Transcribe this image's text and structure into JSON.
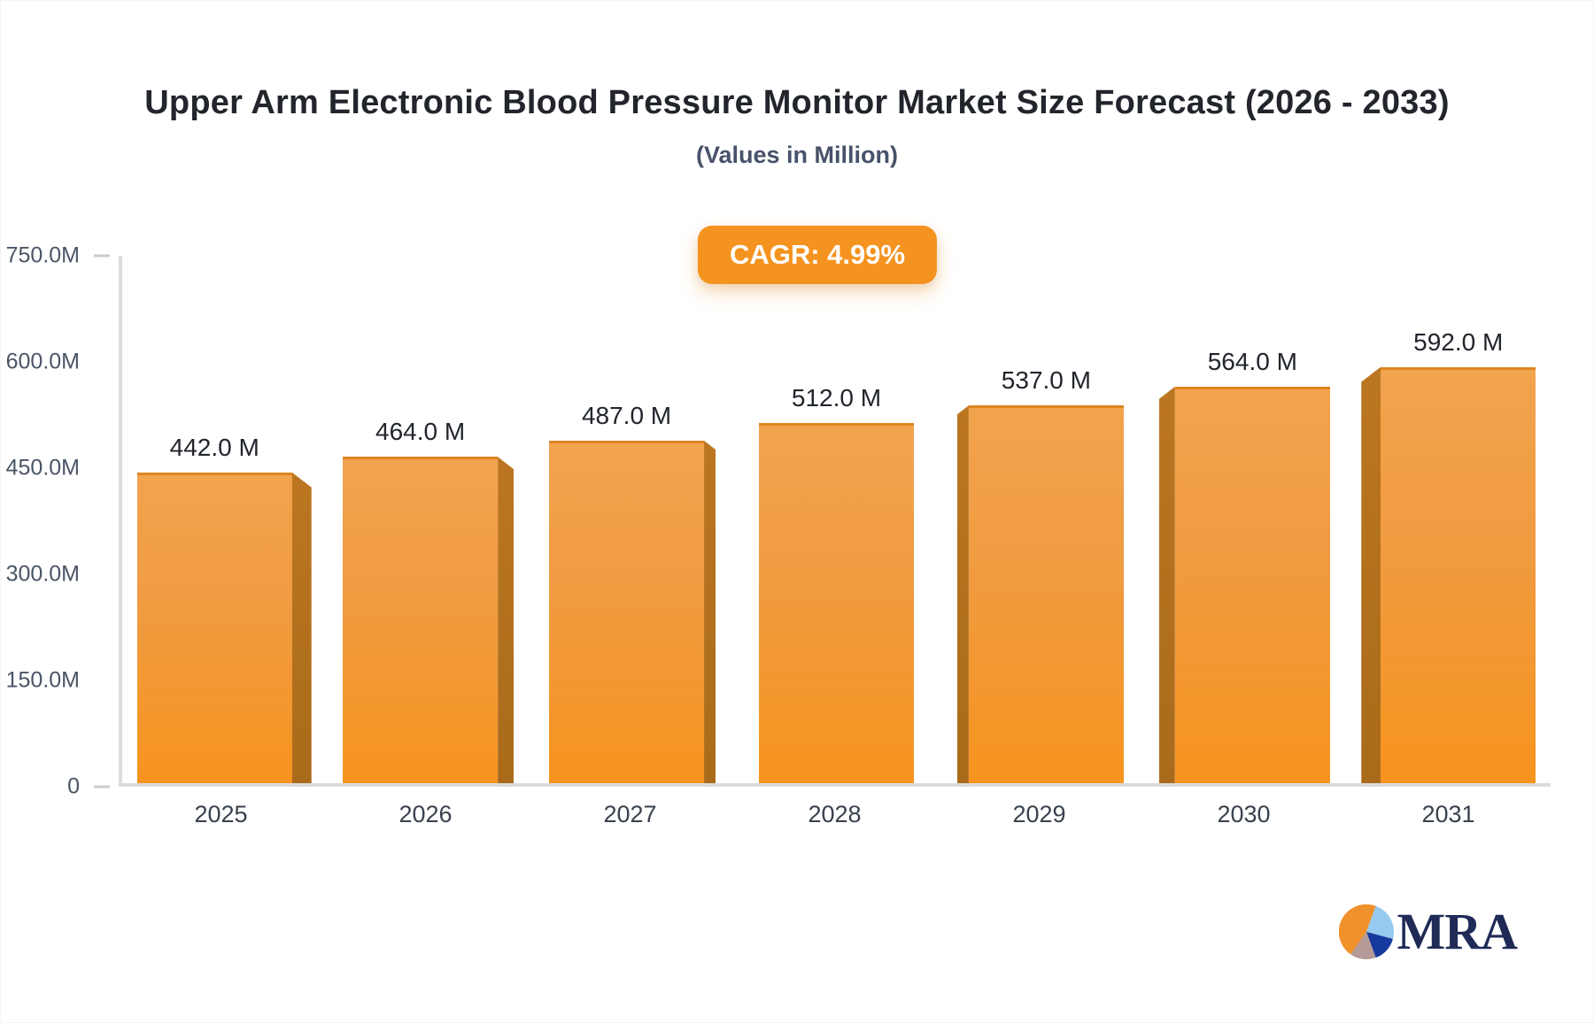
{
  "header": {
    "title": "Upper Arm Electronic Blood Pressure Monitor Market Size Forecast (2026 - 2033)",
    "subtitle": "(Values in Million)"
  },
  "cagr_badge": {
    "label": "CAGR: 4.99%",
    "background": "#F4931F",
    "text_color": "#FFFFFF"
  },
  "chart_data": {
    "type": "bar",
    "title": "Upper Arm Electronic Blood Pressure Monitor Market Size Forecast (2026 - 2033)",
    "subtitle": "(Values in Million)",
    "categories": [
      "2025",
      "2026",
      "2027",
      "2028",
      "2029",
      "2030",
      "2031"
    ],
    "values": [
      442,
      464,
      487,
      512,
      537,
      564,
      592
    ],
    "value_labels": [
      "442.0 M",
      "464.0 M",
      "487.0 M",
      "512.0 M",
      "537.0 M",
      "564.0 M",
      "592.0 M"
    ],
    "xlabel": "",
    "ylabel": "",
    "ylim": [
      0,
      750
    ],
    "yticks": [
      {
        "value": 0,
        "label": "0",
        "tick_dash": true
      },
      {
        "value": 150,
        "label": "150.0M",
        "tick_dash": false
      },
      {
        "value": 300,
        "label": "300.0M",
        "tick_dash": false
      },
      {
        "value": 450,
        "label": "450.0M",
        "tick_dash": false
      },
      {
        "value": 600,
        "label": "600.0M",
        "tick_dash": false
      },
      {
        "value": 750,
        "label": "750.0M",
        "tick_dash": true
      }
    ],
    "grid": false,
    "legend": false,
    "bar_style": {
      "effect": "3d-center-perspective",
      "face_gradient_top": "#F2A34E",
      "face_gradient_bottom": "#F7941F",
      "face_top_edge": "#DD8521",
      "side_color": "#B2701D"
    }
  },
  "logo": {
    "text": "MRA",
    "icon": "pie-chart-icon",
    "text_color": "#1F2A57",
    "icon_colors": {
      "orange": "#F0912B",
      "light_blue": "#96CAEE",
      "navy": "#16399D",
      "mauve": "#B49B97"
    }
  }
}
